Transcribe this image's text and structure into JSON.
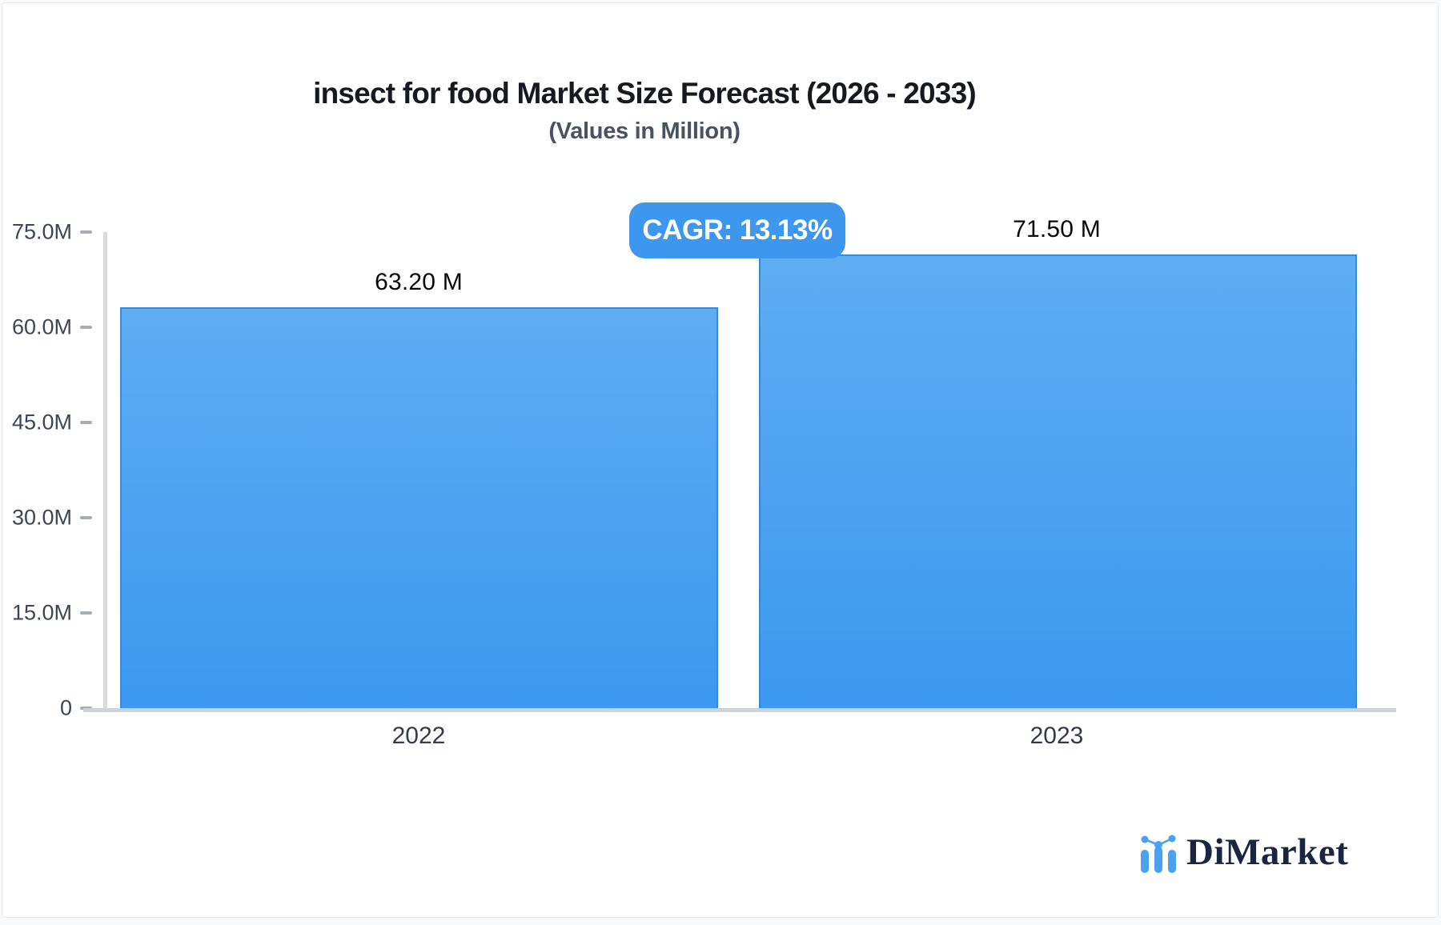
{
  "header": {
    "title": "insect for food Market Size Forecast (2026 - 2033)",
    "subtitle": "(Values in Million)"
  },
  "badge": {
    "cagr_label": "CAGR: 13.13%",
    "color": "#3e97ef"
  },
  "chart_data": {
    "type": "bar",
    "title": "insect for food Market Size Forecast (2026 - 2033)",
    "subtitle": "(Values in Million)",
    "categories": [
      "2022",
      "2023"
    ],
    "values": [
      63.2,
      71.5
    ],
    "value_labels": [
      "63.20 M",
      "71.50 M"
    ],
    "ylim": [
      0,
      75
    ],
    "ytick_labels": [
      "75.0M",
      "60.0M",
      "45.0M",
      "30.0M",
      "15.0M",
      "0"
    ],
    "cagr_percent": "13.13%",
    "grid": false,
    "legend_position": "none",
    "bar_color_top": "#5fadf2",
    "bar_color_bottom": "#3b98f0",
    "bar_border_color": "#3a89d5"
  },
  "branding": {
    "logo_text": "DiMarket",
    "logo_icon": "bar-chart-with-trend-line-icon",
    "logo_icon_color": "#4aa1f2",
    "logo_text_color": "#1b2540"
  }
}
